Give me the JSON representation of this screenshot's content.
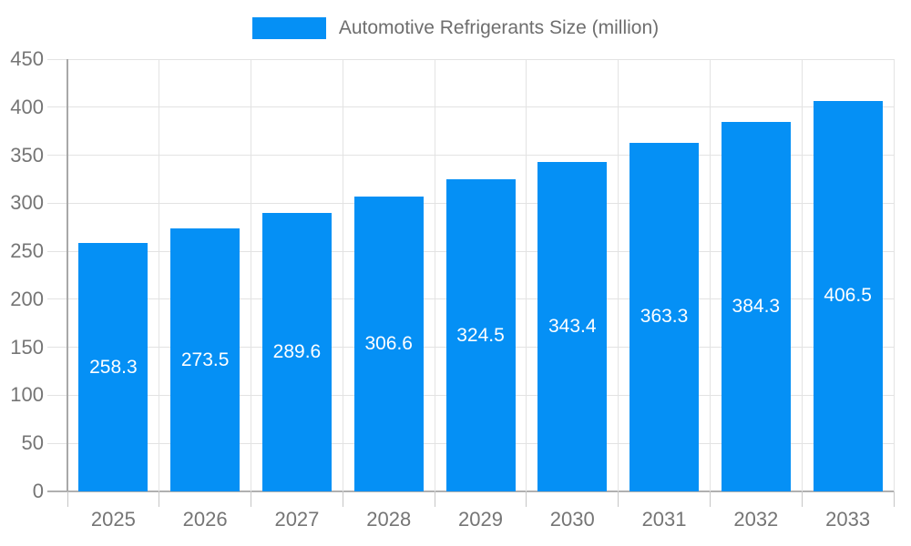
{
  "chart_data": {
    "type": "bar",
    "title": "Automotive Refrigerants Size (million)",
    "series_name": "Automotive Refrigerants Size (million)",
    "categories": [
      "2025",
      "2026",
      "2027",
      "2028",
      "2029",
      "2030",
      "2031",
      "2032",
      "2033"
    ],
    "values": [
      258.3,
      273.5,
      289.6,
      306.6,
      324.5,
      343.4,
      363.3,
      384.3,
      406.5
    ],
    "value_labels": [
      "258.3",
      "273.5",
      "289.6",
      "306.6",
      "324.5",
      "343.4",
      "363.3",
      "384.3",
      "406.5"
    ],
    "xlabel": "",
    "ylabel": "",
    "ylim": [
      0,
      450
    ],
    "ytick_step": 50,
    "y_ticks": [
      0,
      50,
      100,
      150,
      200,
      250,
      300,
      350,
      400,
      450
    ],
    "grid": true,
    "legend_position": "top",
    "colors": {
      "bar": "#0590F5",
      "bar_label": "#ffffff",
      "grid_line": "#e3e3e3",
      "axis_line": "#a8a8a8",
      "baseline": "#b0b0b0",
      "tick_mark": "#c6c6c6",
      "tick_text": "#757575",
      "title_text": "#6e6e6e",
      "background": "#ffffff"
    }
  }
}
